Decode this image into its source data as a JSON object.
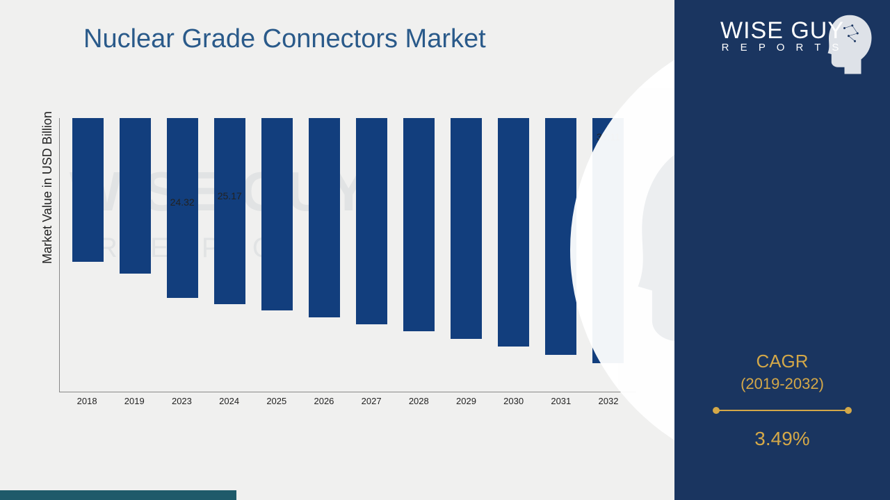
{
  "title": "Nuclear Grade Connectors Market",
  "ylabel": "Market Value in USD Billion",
  "logo": {
    "main": "WISE GUY",
    "sub": "R E P O R T S"
  },
  "cagr": {
    "label": "CAGR",
    "years": "(2019-2032)",
    "value": "3.49%"
  },
  "chart": {
    "type": "bar",
    "bar_color": "#123e7d",
    "background_color": "#f0f0ef",
    "axis_color": "#888888",
    "label_font_size": 13,
    "value_label_font_size": 14,
    "y_max": 37,
    "bar_width_pct": 66,
    "categories": [
      "2018",
      "2019",
      "2023",
      "2024",
      "2025",
      "2026",
      "2027",
      "2028",
      "2029",
      "2030",
      "2031",
      "2032"
    ],
    "values": [
      19.4,
      21.0,
      24.32,
      25.17,
      26.05,
      26.96,
      27.9,
      28.87,
      29.88,
      30.92,
      32.0,
      33.11
    ],
    "show_value_label": [
      false,
      false,
      true,
      true,
      false,
      false,
      false,
      false,
      false,
      false,
      false,
      true
    ]
  },
  "colors": {
    "title": "#2a5a8a",
    "side_panel": "#1a3560",
    "accent": "#d4a848",
    "circle": "#ffffff",
    "bottom_bar": "#1f5a6a"
  },
  "watermark": {
    "main": "WISE GUY",
    "sub": "R E P O R T S"
  }
}
